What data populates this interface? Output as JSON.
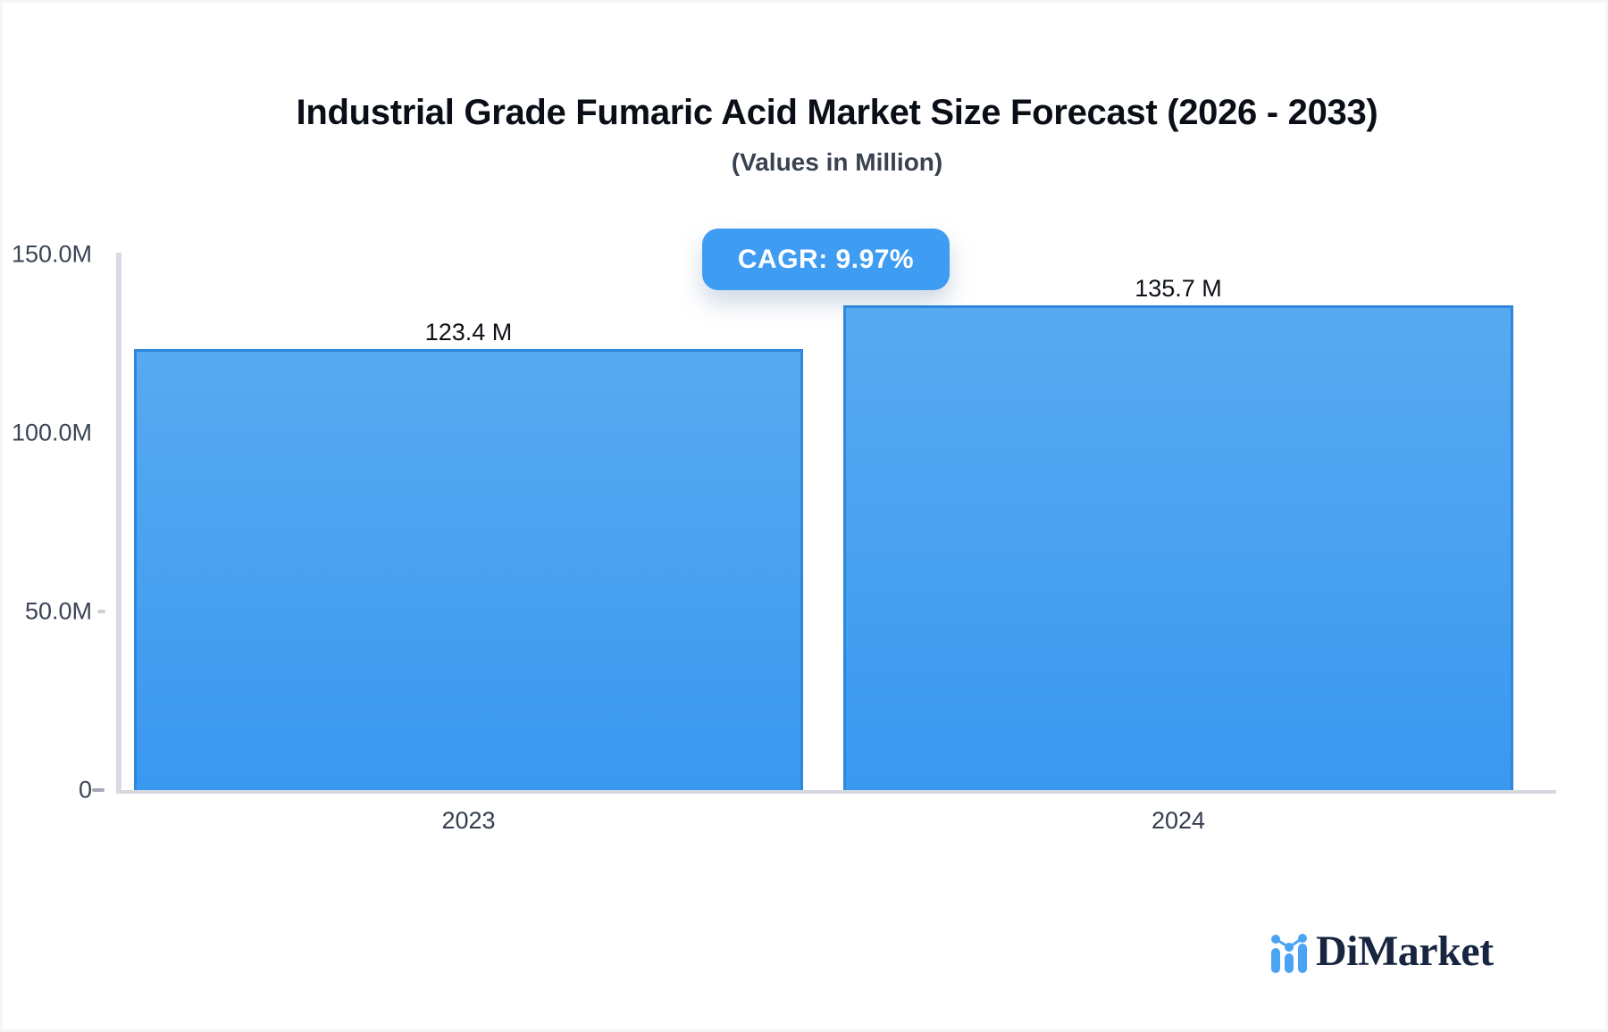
{
  "header": {
    "title": "Industrial Grade Fumaric Acid Market Size Forecast (2026 - 2033)",
    "subtitle": "(Values in Million)"
  },
  "badge": {
    "label": "CAGR: 9.97%",
    "bg_color": "#3e9cf3",
    "text_color": "#ffffff"
  },
  "chart_data": {
    "type": "bar",
    "title": "Industrial Grade Fumaric Acid Market Size Forecast (2026 - 2033)",
    "subtitle": "(Values in Million)",
    "annotation": "CAGR: 9.97%",
    "unit": "Million",
    "categories": [
      "2023",
      "2024"
    ],
    "values": [
      123.4,
      135.7
    ],
    "value_labels": [
      "123.4 M",
      "135.7 M"
    ],
    "ylim": [
      0,
      150
    ],
    "y_ticks": [
      {
        "value": 150,
        "label": "150.0M"
      },
      {
        "value": 100,
        "label": "100.0M"
      },
      {
        "value": 50,
        "label": "50.0M"
      },
      {
        "value": 0,
        "label": "0"
      }
    ],
    "grid": false,
    "legend_position": "none",
    "bar_color_top": "#58aaf0",
    "bar_color_bottom": "#3a98f0",
    "bar_border_color": "#2e87dd",
    "axis_color": "#d8dce2"
  },
  "logo": {
    "text": "DiMarket",
    "icon": "mini-bar-line-chart-icon",
    "icon_color": "#4ba3f3",
    "text_color": "#182540"
  }
}
